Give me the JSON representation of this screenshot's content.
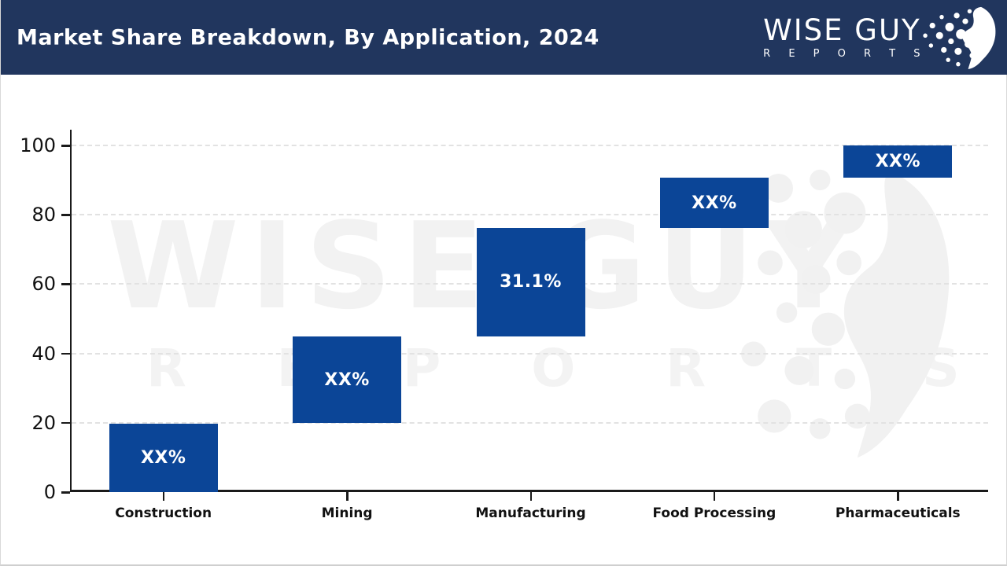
{
  "header": {
    "title": "Market Share Breakdown, By Application, 2024",
    "logo": {
      "line1": "WISE GUY",
      "line2": "R E P O R T S"
    }
  },
  "watermark": {
    "line1": "WISE GUY",
    "line2": "R E P O R T S"
  },
  "colors": {
    "header_bg": "#21365e",
    "bar": "#0b4597",
    "grid": "#e2e2e2",
    "axis": "#1a1a1a",
    "bar_label": "#ffffff",
    "watermark": "#f2f2f2",
    "footer_rule": "#cfcfcf"
  },
  "chart_data": {
    "type": "bar",
    "subtype": "waterfall-floating-bars",
    "title": "Market Share Breakdown, By Application, 2024",
    "categories": [
      "Construction",
      "Mining",
      "Manufacturing",
      "Food Processing",
      "Pharmaceuticals"
    ],
    "segments": [
      {
        "category": "Construction",
        "start": 0,
        "end": 19.8,
        "label": "XX%"
      },
      {
        "category": "Mining",
        "start": 19.9,
        "end": 44.9,
        "label": "XX%"
      },
      {
        "category": "Manufacturing",
        "start": 45.0,
        "end": 76.1,
        "label": "31.1%"
      },
      {
        "category": "Food Processing",
        "start": 76.2,
        "end": 90.6,
        "label": "XX%"
      },
      {
        "category": "Pharmaceuticals",
        "start": 90.7,
        "end": 100.0,
        "label": "XX%"
      }
    ],
    "xlabel": "",
    "ylabel": "",
    "ylim": [
      0,
      104.5
    ],
    "yticks": [
      0,
      20,
      40,
      60,
      80,
      100
    ],
    "grid": "horizontal-dashed",
    "legend": "none"
  }
}
